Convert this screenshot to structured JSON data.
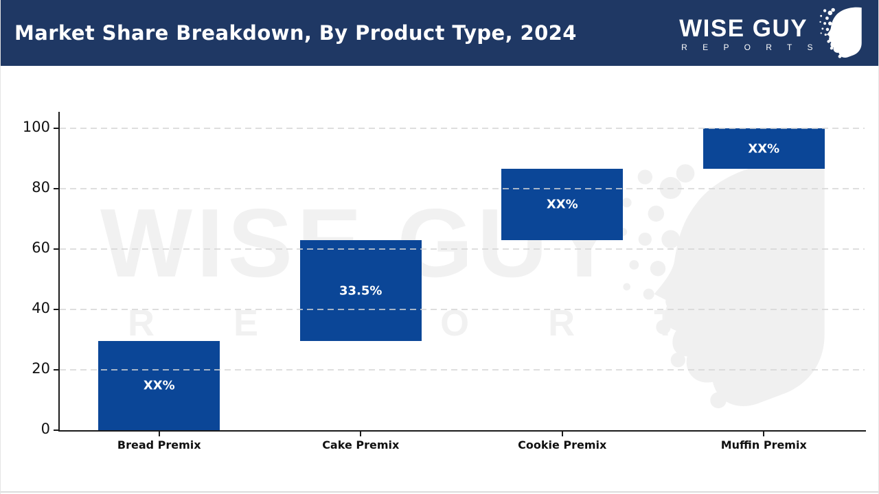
{
  "header": {
    "title": "Market Share Breakdown, By Product Type, 2024",
    "logo": {
      "line1": "WISE GUY",
      "line2": "R E P O R T S"
    }
  },
  "watermark": {
    "line1": "WISE GUY",
    "line2": "R E P O R T S"
  },
  "chart_data": {
    "type": "bar",
    "subtype": "floating-stacked-percent",
    "title": "Market Share Breakdown, By Product Type, 2024",
    "categories": [
      "Bread Premix",
      "Cake Premix",
      "Cookie Premix",
      "Muffin Premix"
    ],
    "bars": [
      {
        "category": "Bread Premix",
        "start": 0,
        "end": 29.5,
        "height": 29.5,
        "value_label": "XX%"
      },
      {
        "category": "Cake Premix",
        "start": 29.5,
        "end": 63.0,
        "height": 33.5,
        "value_label": "33.5%"
      },
      {
        "category": "Cookie Premix",
        "start": 63.0,
        "end": 86.5,
        "height": 23.5,
        "value_label": "XX%"
      },
      {
        "category": "Muffin Premix",
        "start": 86.5,
        "end": 100.0,
        "height": 13.5,
        "value_label": "XX%"
      }
    ],
    "yticks": [
      0,
      20,
      40,
      60,
      80,
      100
    ],
    "ylim": [
      0,
      105
    ],
    "xlabel": "",
    "ylabel": "",
    "grid": {
      "horizontal": true,
      "style": "dashed"
    },
    "legend": "none",
    "colors": {
      "bar": "#0B4697",
      "bar_label": "#FFFFFF",
      "axis": "#1A1A1A",
      "grid": "#D5D5D5",
      "category_label": "#111111"
    }
  },
  "colors": {
    "header_bg": "#1F3864",
    "page_bg": "#FFFFFF",
    "watermark": "#F1F1F1",
    "bottom_rule": "#DCDCDC"
  }
}
